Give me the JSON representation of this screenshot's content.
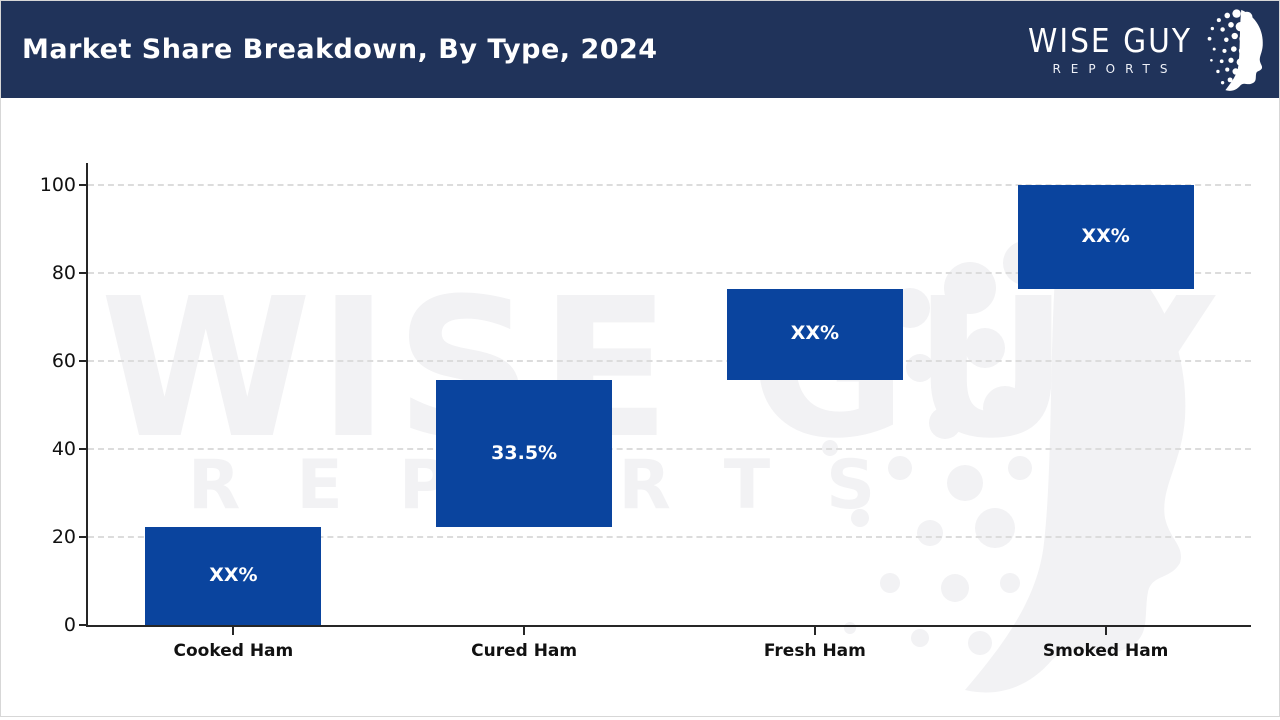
{
  "header": {
    "title": "Market Share Breakdown, By Type, 2024",
    "bg_color": "#20335a",
    "text_color": "#ffffff"
  },
  "logo": {
    "line1": "WISE GUY",
    "line2": "REPORTS",
    "head_icon": "dotted-head-profile"
  },
  "watermark": {
    "line1": "WISE GUY",
    "line2": "REPORTS",
    "color": "#f2f2f4"
  },
  "chart_data": {
    "type": "bar",
    "subtype": "waterfall-floating-bars",
    "title": "Market Share Breakdown, By Type, 2024",
    "categories": [
      "Cooked Ham",
      "Cured Ham",
      "Fresh Ham",
      "Smoked Ham"
    ],
    "series": [
      {
        "name": "Market Share (%)",
        "segments": [
          {
            "category": "Cooked Ham",
            "start": 0,
            "end": 22.2,
            "label": "XX%"
          },
          {
            "category": "Cured Ham",
            "start": 22.2,
            "end": 55.7,
            "label": "33.5%"
          },
          {
            "category": "Fresh Ham",
            "start": 55.7,
            "end": 76.4,
            "label": "XX%"
          },
          {
            "category": "Smoked Ham",
            "start": 76.4,
            "end": 100,
            "label": "XX%"
          }
        ]
      }
    ],
    "xlabel": "",
    "ylabel": "",
    "ylim": [
      0,
      105
    ],
    "yticks": [
      0,
      20,
      40,
      60,
      80,
      100
    ],
    "grid": "horizontal-dashed",
    "legend": "none",
    "bar_color": "#0a449e",
    "bar_label_color": "#ffffff",
    "axis_color": "#262626",
    "gridline_color": "#dcdcdc"
  }
}
